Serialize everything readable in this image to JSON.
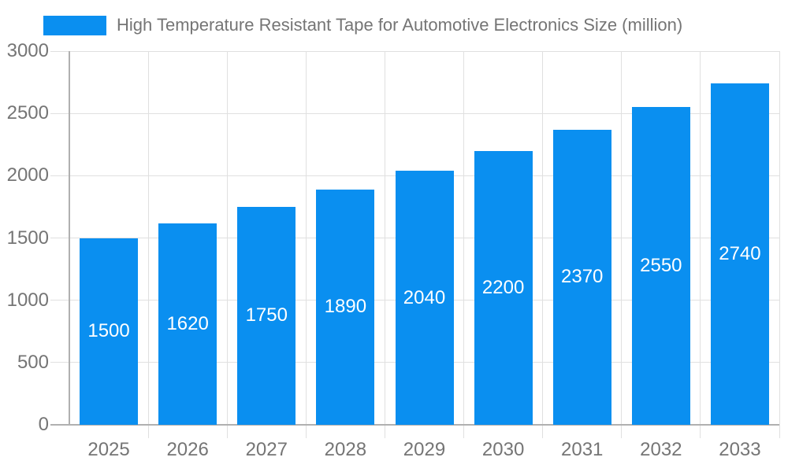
{
  "legend": {
    "series_label": "High Temperature Resistant Tape for Automotive Electronics Size (million)"
  },
  "chart_data": {
    "type": "bar",
    "title": "High Temperature Resistant Tape for Automotive Electronics Size (million)",
    "categories": [
      "2025",
      "2026",
      "2027",
      "2028",
      "2029",
      "2030",
      "2031",
      "2032",
      "2033"
    ],
    "values": [
      1500,
      1620,
      1750,
      1890,
      2040,
      2200,
      2370,
      2550,
      2740
    ],
    "xlabel": "",
    "ylabel": "",
    "ylim": [
      0,
      3000
    ],
    "yticks": [
      0,
      500,
      1000,
      1500,
      2000,
      2500,
      3000
    ],
    "grid": true,
    "legend_position": "top-left",
    "value_labels": "inside-middle-white",
    "bar_color": "#0a8ff0",
    "value_label_color": "#ffffff",
    "axis_text_color": "#757575",
    "gridline_color": "#e0e0e0",
    "axis_line_color": "#b0b0b0",
    "background_color": "#ffffff"
  }
}
